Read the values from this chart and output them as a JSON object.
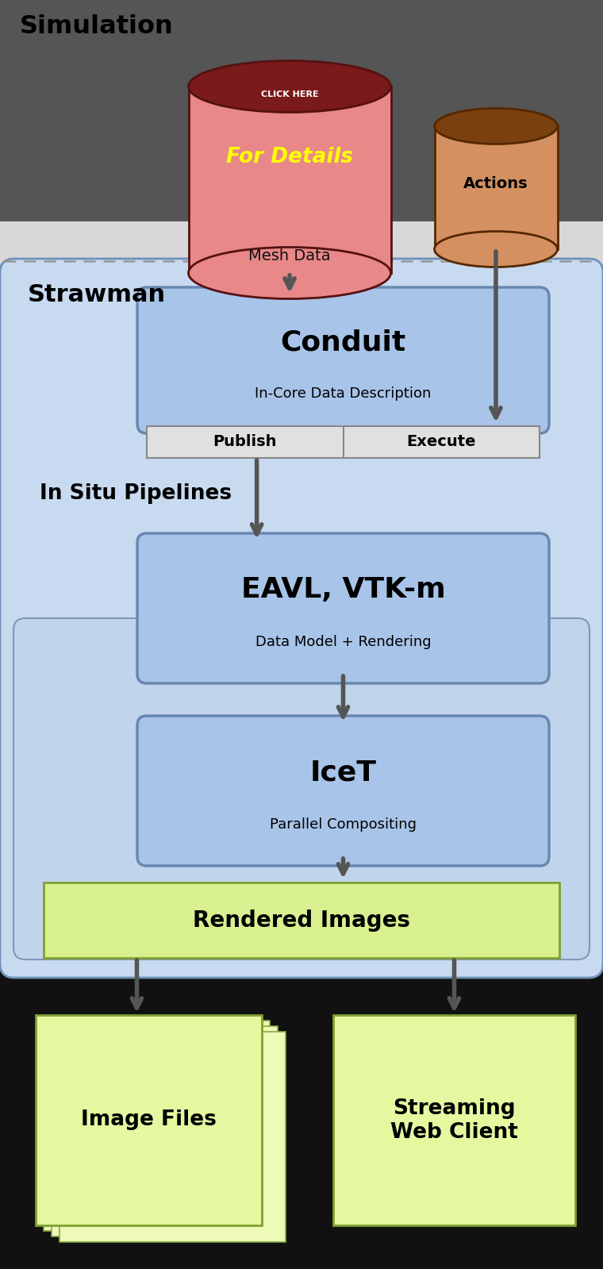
{
  "fig_width": 7.6,
  "fig_height": 15.99,
  "bg_color": "#111111",
  "sim_bg": "#555555",
  "sim_text": "Simulation",
  "gray_band_bg": "#cccccc",
  "strawman_bg": "#c8daf0",
  "strawman_text": "Strawman",
  "conduit_bg": "#a8c4e8",
  "conduit_title": "Conduit",
  "conduit_sub": "In-Core Data Description",
  "publish_text": "Publish",
  "execute_text": "Execute",
  "pub_exe_bg": "#e0e0e0",
  "pipelines_bg": "#c0d4ec",
  "pipelines_text": "In Situ Pipelines",
  "eavl_bg": "#a8c4e8",
  "eavl_title": "EAVL, VTK-m",
  "eavl_sub": "Data Model + Rendering",
  "icet_bg": "#a8c4e8",
  "icet_title": "IceT",
  "icet_sub": "Parallel Compositing",
  "rendered_bg": "#d8f090",
  "rendered_text": "Rendered Images",
  "imgfiles_bg": "#e4f8a0",
  "imgfiles_text": "Image Files",
  "streaming_bg": "#e4f8a0",
  "streaming_text": "Streaming\nWeb Client",
  "meshdata_body": "#e88888",
  "meshdata_top": "#7a1a1a",
  "meshdata_edge": "#551111",
  "meshdata_text": "Mesh Data",
  "meshdata_label_top": "CLICK HERE",
  "meshdata_label_bot": "For Details",
  "actions_body": "#d49060",
  "actions_top": "#7a4010",
  "actions_edge": "#552800",
  "actions_text": "Actions",
  "arrow_color": "#555555",
  "dashed_color": "#999999",
  "box_border": "#6888b0"
}
